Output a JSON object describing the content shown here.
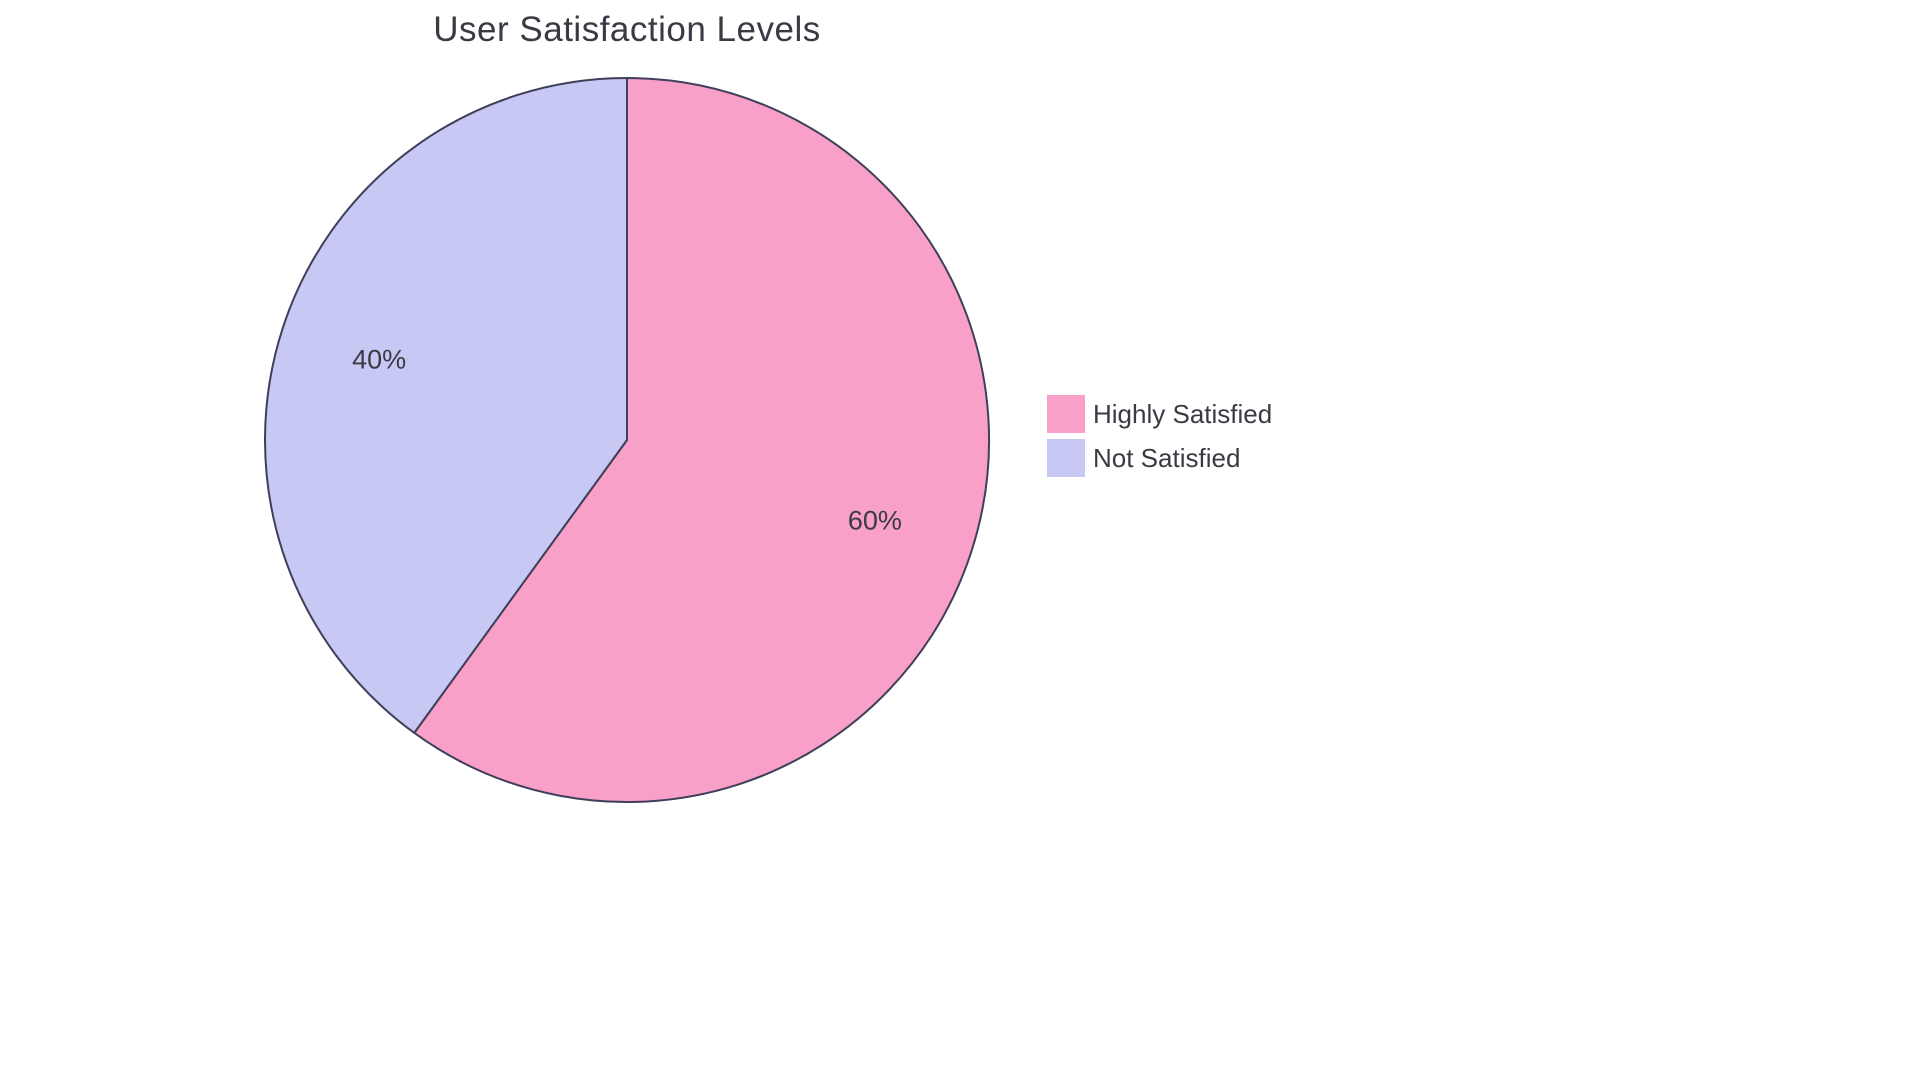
{
  "chart_data": {
    "type": "pie",
    "title": "User Satisfaction Levels",
    "categories": [
      "Highly Satisfied",
      "Not Satisfied"
    ],
    "values": [
      60,
      40
    ],
    "slices": [
      {
        "label": "Highly Satisfied",
        "value": 60,
        "percent_label": "60%",
        "color": "#F9A0C9"
      },
      {
        "label": "Not Satisfied",
        "value": 40,
        "percent_label": "40%",
        "color": "#C7C8F4"
      }
    ],
    "stroke_color": "#3F3F5A",
    "start_angle_deg": 0,
    "direction": "clockwise",
    "legend_position": "right",
    "legend": [
      "Highly Satisfied",
      "Not Satisfied"
    ]
  }
}
